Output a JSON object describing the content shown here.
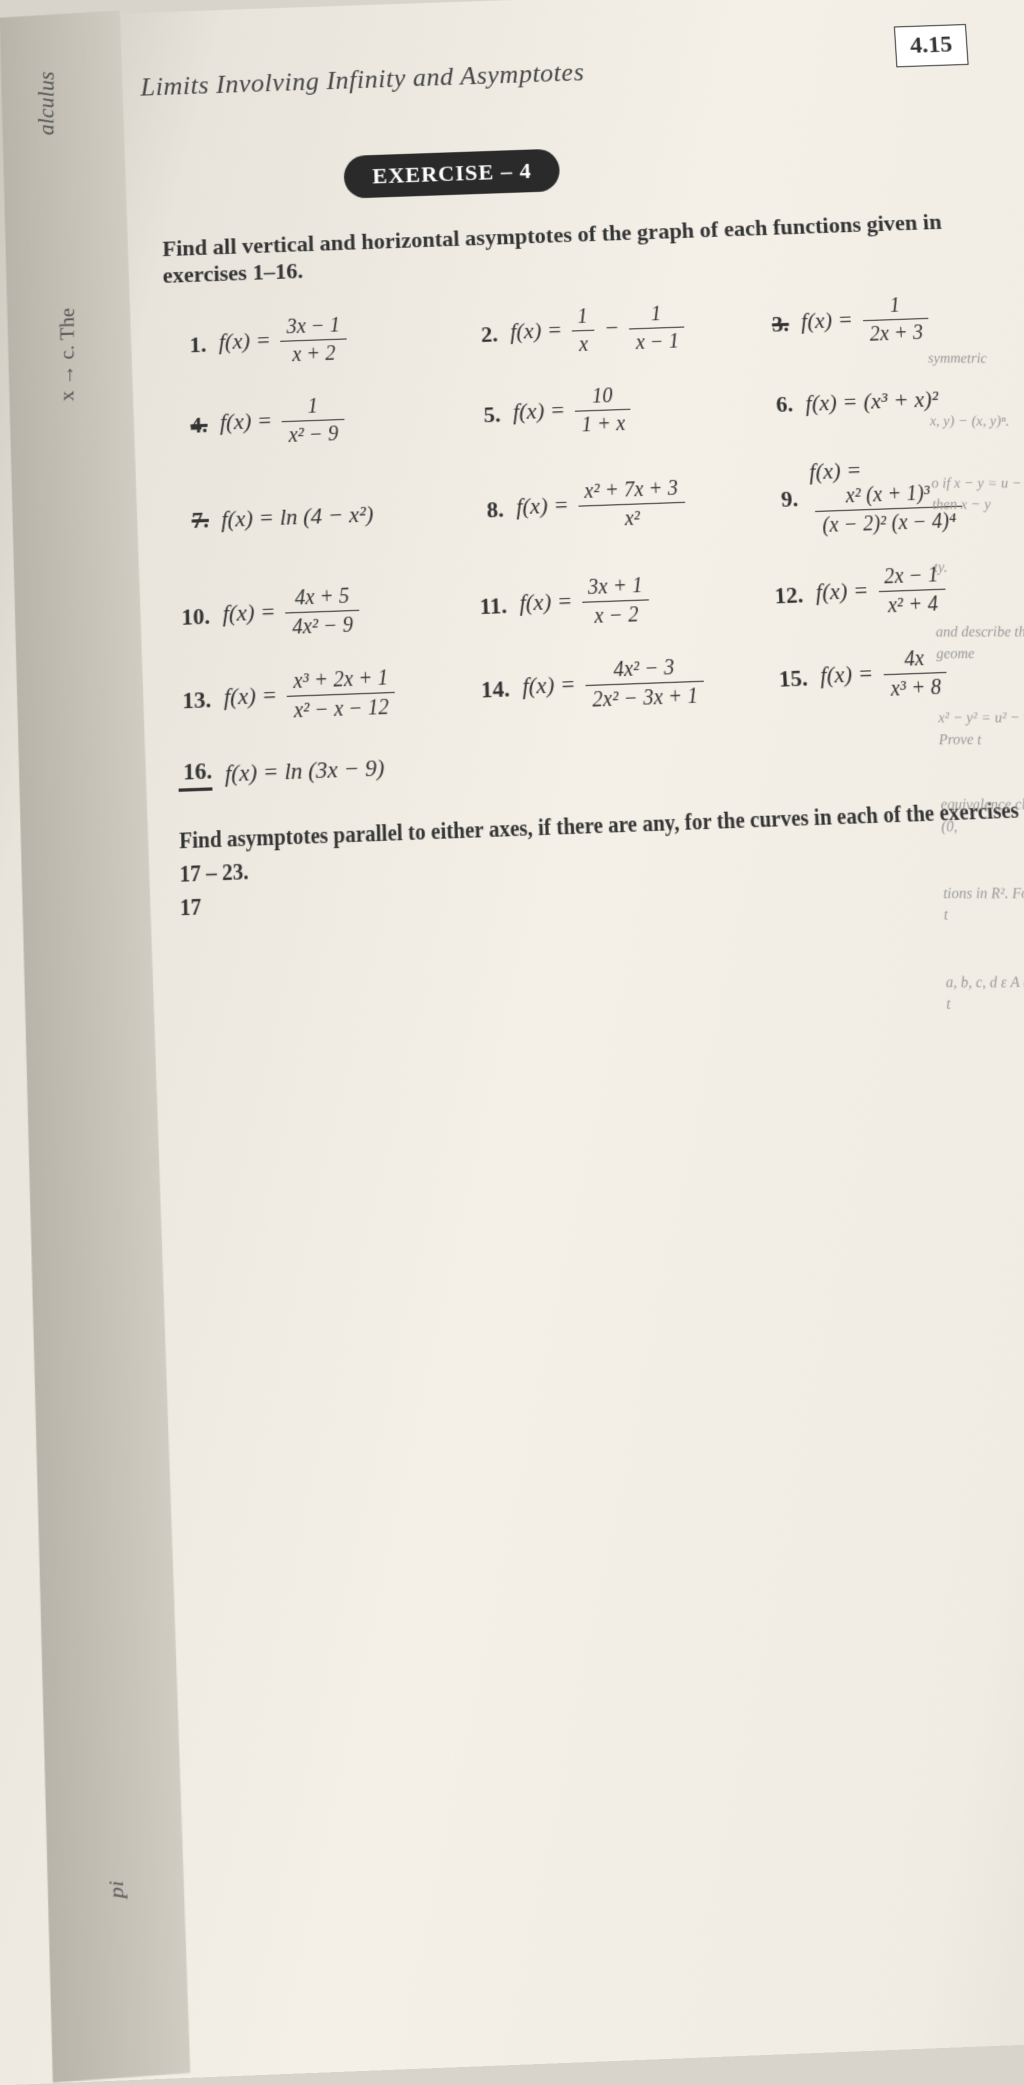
{
  "header": {
    "title": "Limits Involving Infinity and Asymptotes",
    "section_number": "4.15"
  },
  "left_margin": {
    "alculus": "alculus",
    "xc": "x → c. The",
    "pi": "pi"
  },
  "exercise": {
    "pill": "EXERCISE – 4",
    "instruction": "Find all vertical and horizontal asymptotes of the graph of each functions given in exercises 1–16."
  },
  "problems": [
    {
      "num": "1.",
      "fx": "f(x) =",
      "num_tex": "3x − 1",
      "den_tex": "x + 2"
    },
    {
      "num": "2.",
      "fx": "f(x) =",
      "inline": true
    },
    {
      "num": "3.",
      "fx": "f(x) =",
      "num_tex": "1",
      "den_tex": "2x + 3",
      "mark": "strike"
    },
    {
      "num": "4.",
      "fx": "f(x) =",
      "num_tex": "1",
      "den_tex": "x² − 9",
      "mark": "strike"
    },
    {
      "num": "5.",
      "fx": "f(x) =",
      "num_tex": "10",
      "den_tex": "1 + x"
    },
    {
      "num": "6.",
      "fx": "f(x) = (x³ + x)²",
      "nofrac": true
    },
    {
      "num": "7.",
      "fx": "f(x) = ln (4 − x²)",
      "nofrac": true,
      "mark": "strike"
    },
    {
      "num": "8.",
      "fx": "f(x) =",
      "num_tex": "x² + 7x + 3",
      "den_tex": "x²"
    },
    {
      "num": "9.",
      "fx": "f(x) =",
      "num_tex": "x² (x + 1)³",
      "den_tex": "(x − 2)² (x − 4)⁴"
    },
    {
      "num": "10.",
      "fx": "f(x) =",
      "num_tex": "4x + 5",
      "den_tex": "4x² − 9"
    },
    {
      "num": "11.",
      "fx": "f(x) =",
      "num_tex": "3x + 1",
      "den_tex": "x − 2"
    },
    {
      "num": "12.",
      "fx": "f(x) =",
      "num_tex": "2x − 1",
      "den_tex": "x² + 4"
    },
    {
      "num": "13.",
      "fx": "f(x) =",
      "num_tex": "x³ + 2x + 1",
      "den_tex": "x² − x − 12"
    },
    {
      "num": "14.",
      "fx": "f(x) =",
      "num_tex": "4x² − 3",
      "den_tex": "2x² − 3x + 1"
    },
    {
      "num": "15.",
      "fx": "f(x) =",
      "num_tex": "4x",
      "den_tex": "x³ + 8"
    },
    {
      "num": "16.",
      "fx": "f(x) = ln (3x − 9)",
      "nofrac": true,
      "mark": "underline"
    }
  ],
  "problem2_parts": {
    "frac1_num": "1",
    "frac1_den": "x",
    "minus": "−",
    "frac2_num": "1",
    "frac2_den": "x − 1"
  },
  "find_instruction": {
    "line1": "Find asymptotes parallel to either axes, if there are any, for the curves in each of the exercises",
    "line2": "17 – 23.",
    "line3": "17"
  },
  "right_notes": {
    "n1": "symmetric",
    "n2": "x, y) − (x, y)ⁿ.",
    "n3": "o if x − y = u − v, then x − y",
    "n4": "ty.",
    "n5": "and describe these geome",
    "n6": "x² − y² = u² − v². Prove t",
    "n7": "equivalence class of (0,",
    "n8": "tions in R². For those t",
    "n9": "a, b, c, d ε A are such t"
  }
}
